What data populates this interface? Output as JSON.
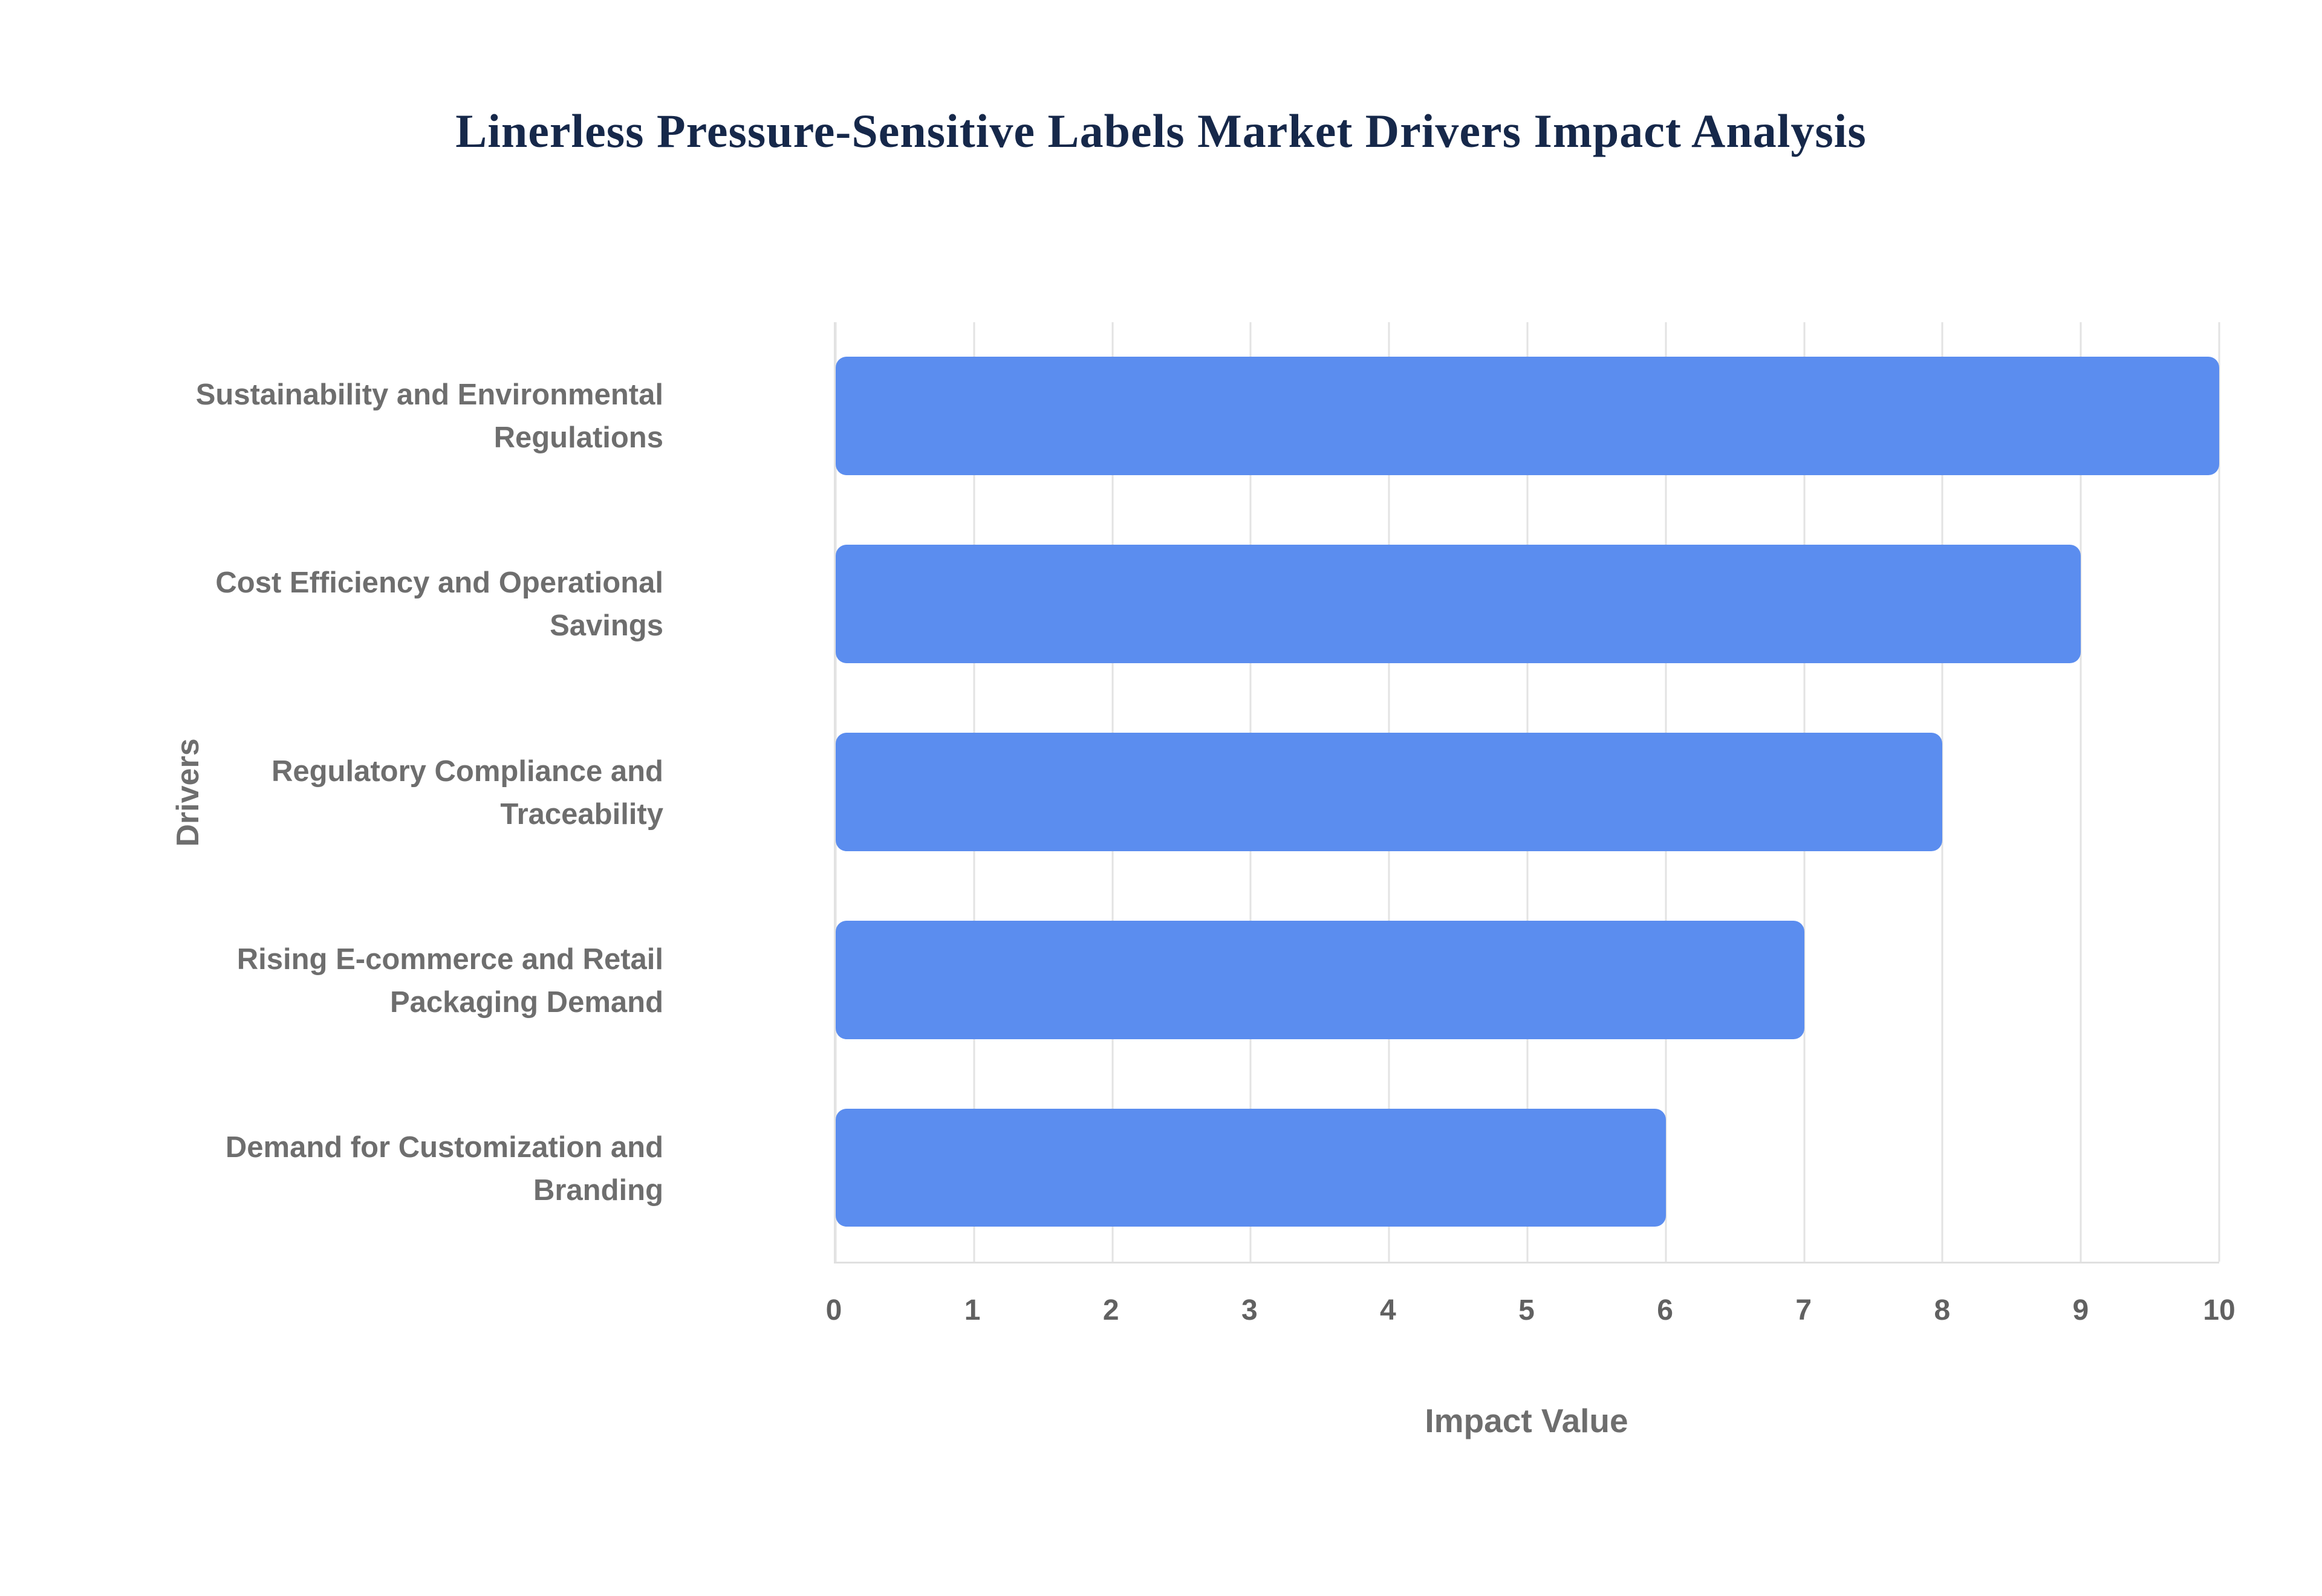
{
  "page": {
    "background": "#ffffff"
  },
  "chart_data": {
    "type": "bar",
    "orientation": "horizontal",
    "title": "Linerless Pressure-Sensitive Labels Market Drivers Impact Analysis",
    "categories": [
      "Sustainability and Environmental Regulations",
      "Cost Efficiency and Operational Savings",
      "Regulatory Compliance and Traceability",
      "Rising E-commerce and Retail Packaging Demand",
      "Demand for Customization and Branding"
    ],
    "values": [
      10,
      9,
      8,
      7,
      6
    ],
    "xlabel": "Impact Value",
    "ylabel": "Drivers",
    "xlim": [
      0,
      10
    ],
    "xticks": [
      0,
      1,
      2,
      3,
      4,
      5,
      6,
      7,
      8,
      9,
      10
    ],
    "grid": true,
    "legend": false,
    "colors": {
      "bar": "#5b8def",
      "grid": "#e3e3e3",
      "title": "#16284a",
      "labels": "#6e6e6e"
    }
  }
}
